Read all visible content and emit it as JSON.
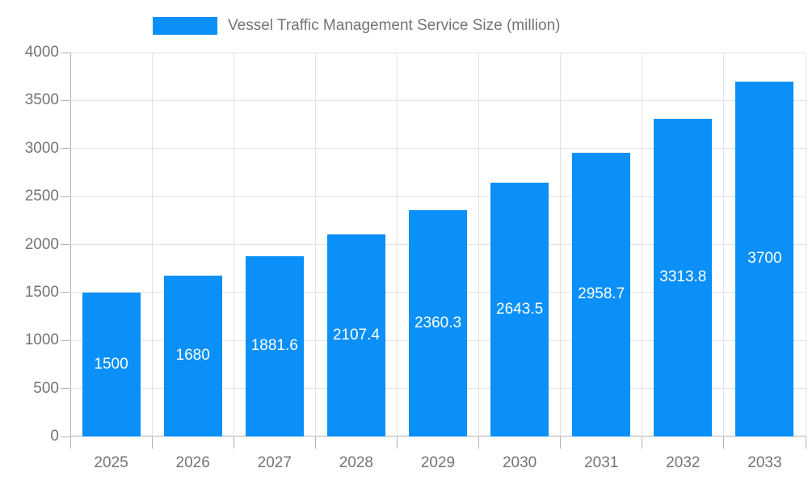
{
  "chart_data": {
    "type": "bar",
    "title": "Vessel Traffic Management Service Size (million)",
    "categories": [
      "2025",
      "2026",
      "2027",
      "2028",
      "2029",
      "2030",
      "2031",
      "2032",
      "2033"
    ],
    "values": [
      1500,
      1680,
      1881.6,
      2107.4,
      2360.3,
      2643.5,
      2958.7,
      3313.8,
      3700
    ],
    "value_labels": [
      "1500",
      "1680",
      "1881.6",
      "2107.4",
      "2360.3",
      "2643.5",
      "2958.7",
      "3313.8",
      "3700"
    ],
    "yticks": [
      0,
      500,
      1000,
      1500,
      2000,
      2500,
      3000,
      3500,
      4000
    ],
    "ylim": [
      0,
      4000
    ],
    "xlabel": "",
    "ylabel": "",
    "grid": true,
    "legend_position": "top",
    "colors": {
      "bar": "#0a90f8",
      "grid": "#e3e3e3",
      "axis": "#b3b3b3",
      "text": "#747474",
      "bar_label": "#ffffff",
      "background": "#ffffff"
    }
  }
}
